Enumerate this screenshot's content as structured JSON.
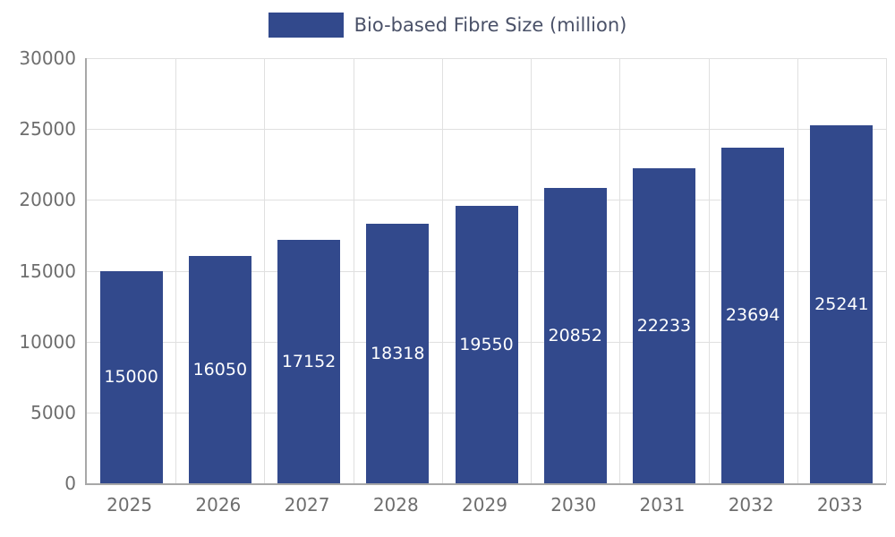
{
  "legend": {
    "label": "Bio-based Fibre Size (million)"
  },
  "chart_data": {
    "type": "bar",
    "title": "Bio-based Fibre Size (million)",
    "categories": [
      "2025",
      "2026",
      "2027",
      "2028",
      "2029",
      "2030",
      "2031",
      "2032",
      "2033"
    ],
    "values": [
      15000,
      16050,
      17152,
      18318,
      19550,
      20852,
      22233,
      23694,
      25241
    ],
    "xlabel": "",
    "ylabel": "",
    "ylim": [
      0,
      30000
    ],
    "yticks": [
      0,
      5000,
      10000,
      15000,
      20000,
      25000,
      30000
    ],
    "grid": true,
    "legend_position": "top",
    "bar_color": "#32498c",
    "value_label_color": "#ffffff",
    "axis_line_color": "#a8a8a8",
    "gridline_color": "#e0e0e0",
    "tick_label_color": "#6e6e6e",
    "legend_text_color": "#4a5168"
  }
}
